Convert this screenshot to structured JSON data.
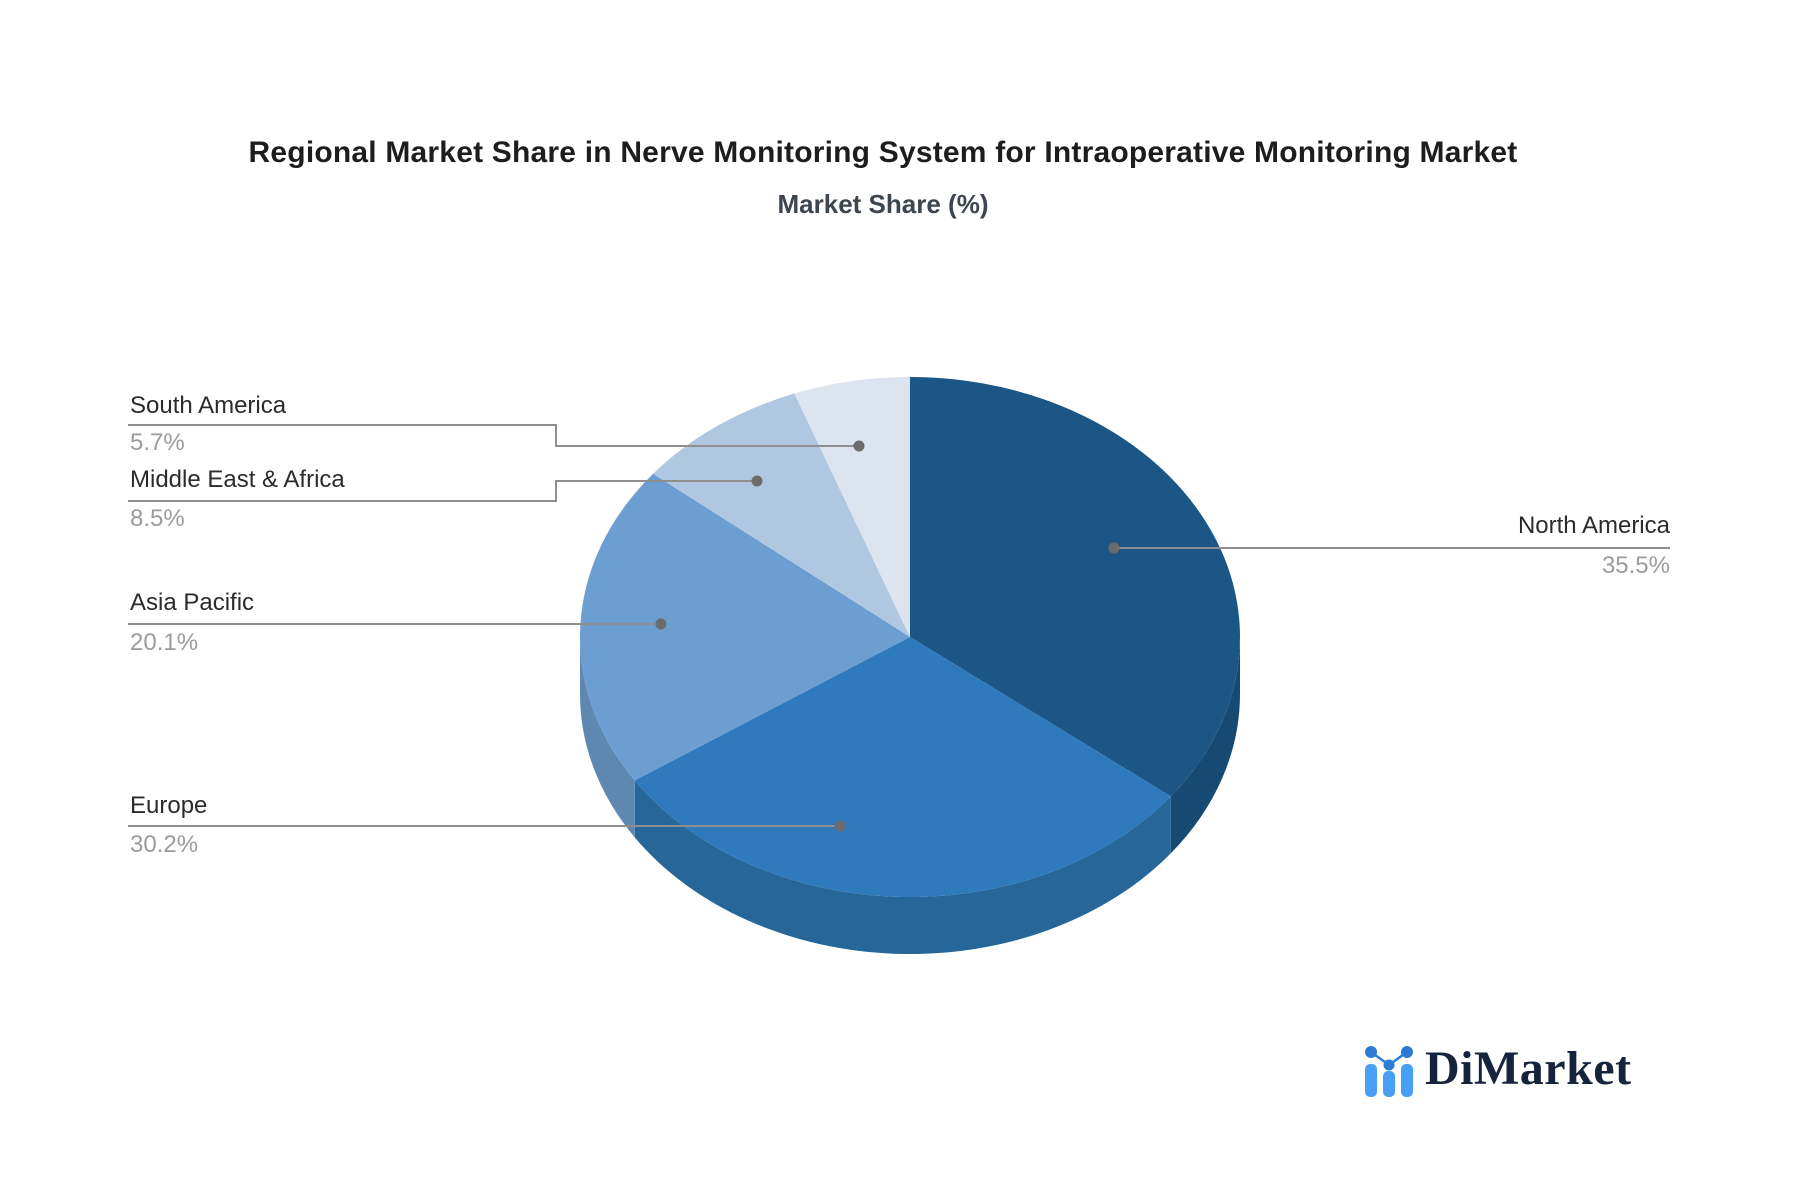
{
  "title": "Regional Market Share in Nerve Monitoring System for Intraoperative Monitoring Market",
  "subtitle": "Market Share (%)",
  "logo": {
    "brand": "DiMarket"
  },
  "colors": {
    "connector_line": "#8f8f8f",
    "connector_dot": "#6c6c6c",
    "title_text": "#1d1d1d",
    "subtitle_text": "#3d4551",
    "label_text": "#2b2b2b",
    "pct_text": "#9b9b9b",
    "logo_text": "#15233c",
    "logo_icon_bar": "#47a0f4",
    "logo_icon_dot": "#2c7cd6"
  },
  "chart_data": {
    "type": "pie",
    "title": "Regional Market Share in Nerve Monitoring System for Intraoperative Monitoring Market",
    "subtitle": "Market Share (%)",
    "unit": "%",
    "effect": "3d",
    "direction": "clockwise",
    "start_angle_deg": 0,
    "grid": false,
    "legend_position": "callout-labels",
    "categories": [
      "North America",
      "Europe",
      "Asia Pacific",
      "Middle East & Africa",
      "South America"
    ],
    "values": [
      35.5,
      30.2,
      20.1,
      8.5,
      5.7
    ],
    "slices": [
      {
        "name": "North America",
        "value": 35.5,
        "pct_label": "35.5%",
        "color": "#1b5687",
        "side_color": "#174a73"
      },
      {
        "name": "Europe",
        "value": 30.2,
        "pct_label": "30.2%",
        "color": "#2e7abc",
        "side_color": "#266698"
      },
      {
        "name": "Asia Pacific",
        "value": 20.1,
        "pct_label": "20.1%",
        "color": "#6c9ed2",
        "side_color": "#5e88b0"
      },
      {
        "name": "Middle East & Africa",
        "value": 8.5,
        "pct_label": "8.5%",
        "color": "#b0c7e1",
        "side_color": "#95a8be"
      },
      {
        "name": "South America",
        "value": 5.7,
        "pct_label": "5.7%",
        "color": "#dce4ef",
        "side_color": "#babfc9"
      }
    ]
  }
}
